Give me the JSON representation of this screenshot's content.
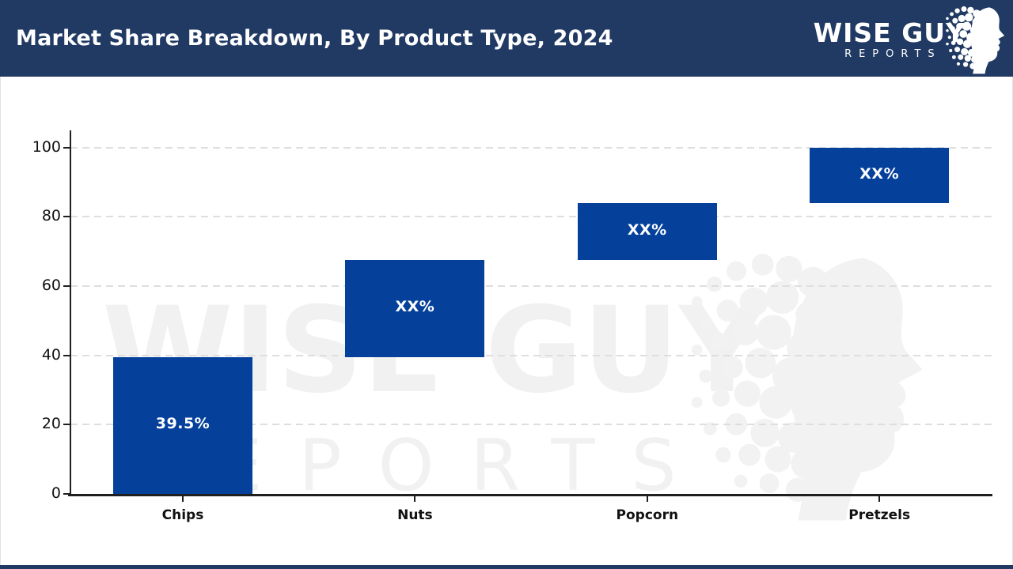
{
  "header": {
    "title": "Market Share Breakdown, By Product Type, 2024",
    "logo": {
      "wordmark": "WISE GUY",
      "subtext": "REPORTS"
    }
  },
  "watermark": {
    "wordmark": "WISE GUY",
    "subtext": "REPORTS"
  },
  "colors": {
    "header_bg": "#213a64",
    "bar_blue": "#05419b",
    "bar_label_text": "#ffffff",
    "gridline": "#dedede",
    "axis": "#1f1f1f",
    "watermark_gray": "#f1f1f2"
  },
  "chart_data": {
    "type": "bar",
    "subtype": "waterfall",
    "title": "Market Share Breakdown, By Product Type, 2024",
    "categories": [
      "Chips",
      "Nuts",
      "Popcorn",
      "Pretzels"
    ],
    "segments": [
      {
        "category": "Chips",
        "start": 0,
        "end": 39.5,
        "label": "39.5%"
      },
      {
        "category": "Nuts",
        "start": 39.5,
        "end": 67.6,
        "label": "XX%"
      },
      {
        "category": "Popcorn",
        "start": 67.6,
        "end": 83.9,
        "label": "XX%"
      },
      {
        "category": "Pretzels",
        "start": 83.9,
        "end": 100,
        "label": "XX%"
      }
    ],
    "ylim": [
      0,
      100
    ],
    "yticks": [
      0,
      20,
      40,
      60,
      80,
      100
    ],
    "xlabel": "",
    "ylabel": "",
    "grid": "horizontal-dashed",
    "legend": "none",
    "bar_color": "#05419b"
  }
}
